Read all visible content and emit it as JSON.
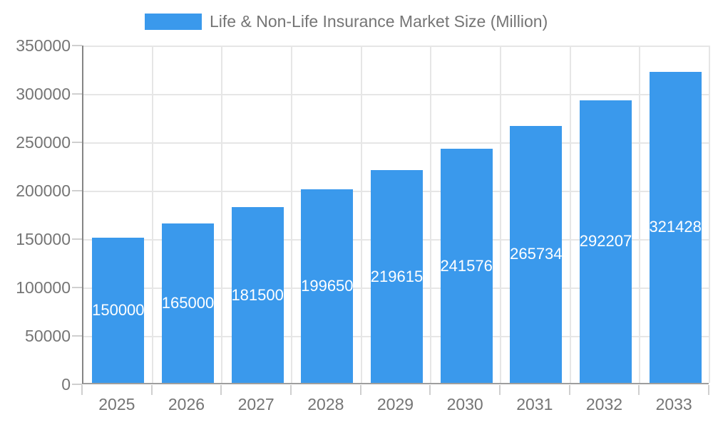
{
  "legend": {
    "label": "Life & Non-Life Insurance Market Size (Million)",
    "swatch_color": "#3A99EC"
  },
  "chart_data": {
    "type": "bar",
    "title": "Life & Non-Life Insurance Market Size (Million)",
    "categories": [
      "2025",
      "2026",
      "2027",
      "2028",
      "2029",
      "2030",
      "2031",
      "2032",
      "2033"
    ],
    "values": [
      150000,
      165000,
      181500,
      199650,
      219615,
      241576,
      265734,
      292207,
      321428
    ],
    "value_labels": [
      "150000",
      "165000",
      "181500",
      "199650",
      "219615",
      "241576",
      "265734",
      "292207",
      "321428"
    ],
    "y_tick_labels": [
      "350000",
      "300000",
      "250000",
      "200000",
      "150000",
      "100000",
      "50000",
      "0"
    ],
    "ylim": [
      0,
      350000
    ],
    "y_tick_step": 50000,
    "xlabel": "",
    "ylabel": "",
    "grid": true,
    "legend_position": "top",
    "colors": {
      "bar": "#3A99EC",
      "gridline": "#E6E6E6",
      "y_axis_line": "#858585",
      "x_axis_line": "#9E9E9E",
      "tick": "#CFCFCF",
      "axis_text": "#757575",
      "value_label_text": "#FFFFFF"
    }
  }
}
